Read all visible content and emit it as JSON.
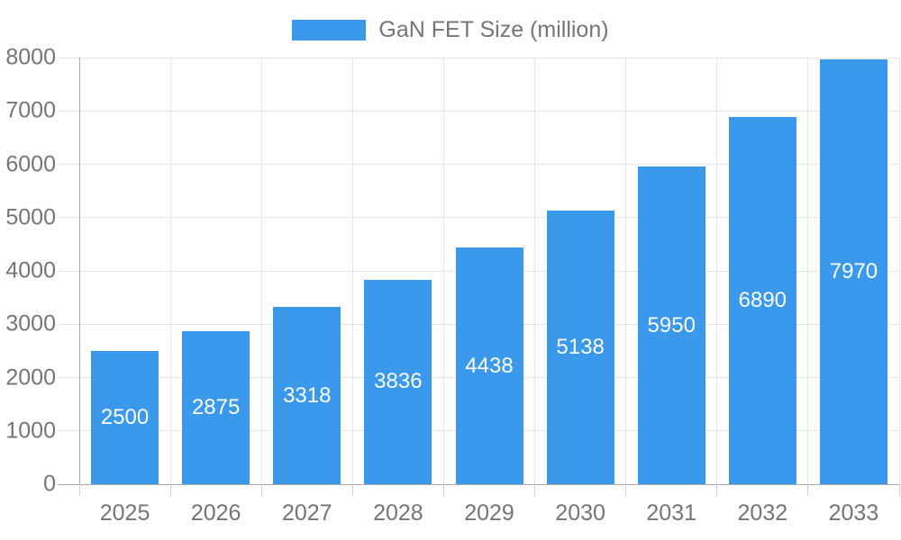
{
  "chart": {
    "legend_label": "GaN FET Size (million)"
  },
  "chart_data": {
    "type": "bar",
    "title": "GaN FET Size (million)",
    "categories": [
      "2025",
      "2026",
      "2027",
      "2028",
      "2029",
      "2030",
      "2031",
      "2032",
      "2033"
    ],
    "series": [
      {
        "name": "GaN FET Size (million)",
        "values": [
          2500,
          2875,
          3318,
          3836,
          4438,
          5138,
          5950,
          6890,
          7970
        ]
      }
    ],
    "xlabel": "",
    "ylabel": "",
    "ylim": [
      0,
      8000
    ],
    "ytick_step": 1000,
    "yticks": [
      0,
      1000,
      2000,
      3000,
      4000,
      5000,
      6000,
      7000,
      8000
    ],
    "grid": true,
    "legend_position": "top",
    "value_labels": {
      "show": true,
      "position": "middle",
      "color": "#ffffff"
    },
    "colors": {
      "bar": "#3b99ec",
      "grid": "#e6e6e6",
      "tick": "#cfcfcf",
      "axis_line": "#a9a9a9",
      "axis_text": "#757575",
      "bar_label_text": "#ffffff",
      "background": "#ffffff"
    }
  }
}
